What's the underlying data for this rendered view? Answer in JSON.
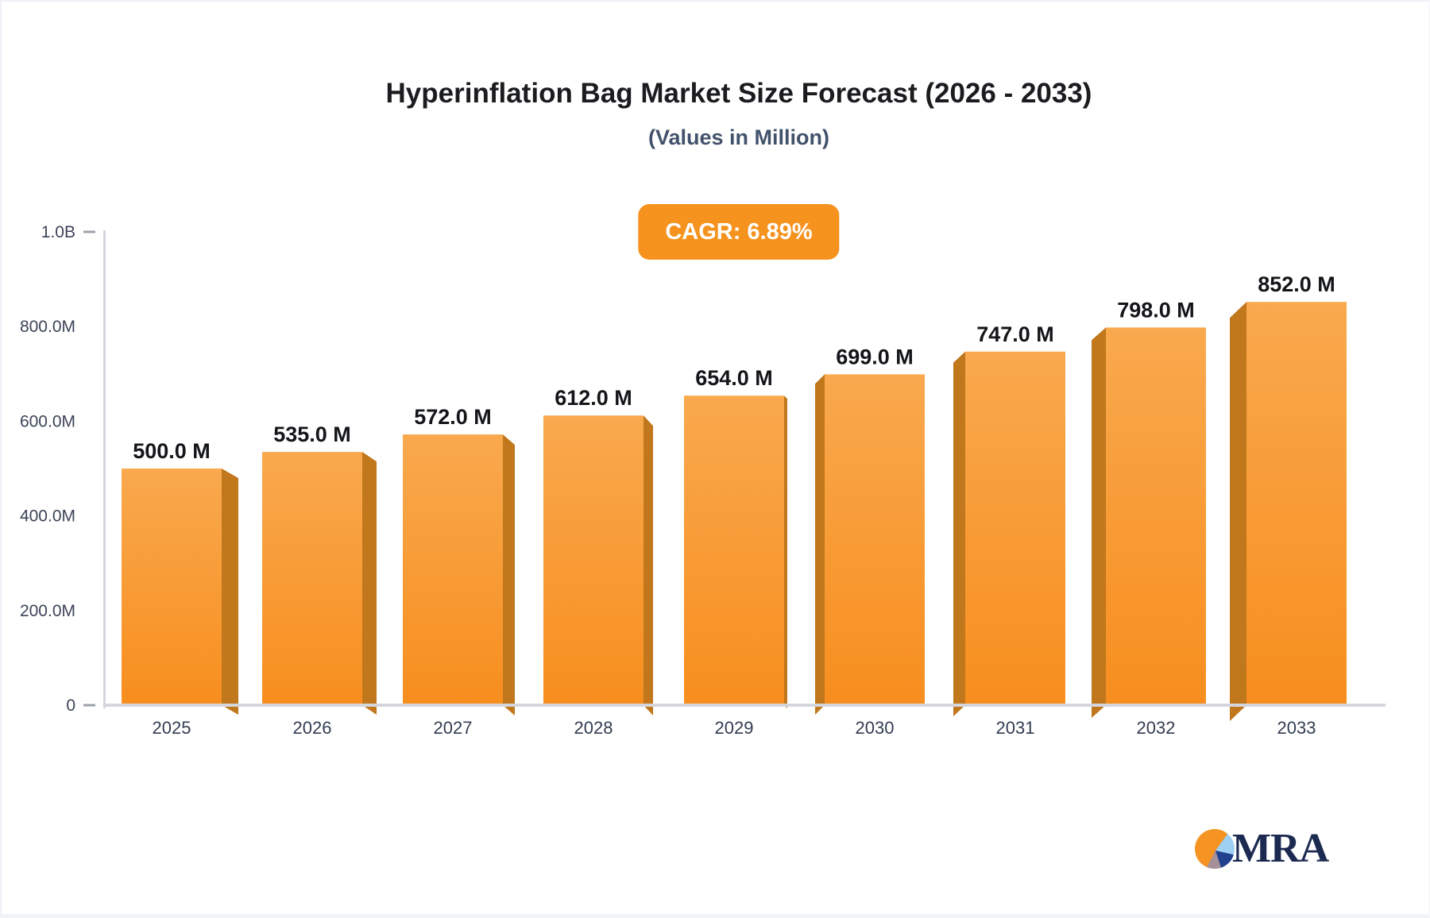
{
  "header": {
    "title": "Hyperinflation Bag Market Size Forecast (2026 - 2033)",
    "subtitle": "(Values in Million)"
  },
  "badge": {
    "label": "CAGR: 6.89%",
    "bg": "#f6921e",
    "text_color": "#ffffff"
  },
  "chart_data": {
    "type": "bar",
    "title": "Hyperinflation Bag Market Size Forecast (2026 - 2033)",
    "subtitle": "(Values in Million)",
    "cagr_label": "CAGR: 6.89%",
    "categories": [
      "2025",
      "2026",
      "2027",
      "2028",
      "2029",
      "2030",
      "2031",
      "2032",
      "2033"
    ],
    "values": [
      500,
      535,
      572,
      612,
      654,
      699,
      747,
      798,
      852
    ],
    "value_labels": [
      "500.0 M",
      "535.0 M",
      "572.0 M",
      "612.0 M",
      "654.0 M",
      "699.0 M",
      "747.0 M",
      "798.0 M",
      "852.0 M"
    ],
    "ylim": [
      0,
      1000
    ],
    "yticks": [
      {
        "v": 0,
        "label": "0"
      },
      {
        "v": 200,
        "label": "200.0M"
      },
      {
        "v": 400,
        "label": "400.0M"
      },
      {
        "v": 600,
        "label": "600.0M"
      },
      {
        "v": 800,
        "label": "800.0M"
      },
      {
        "v": 1000,
        "label": "1.0B"
      }
    ],
    "grid": false,
    "legend": false,
    "style_3d": true,
    "colors": {
      "bar_front_top": "#f9a94e",
      "bar_front_bottom": "#f78e1e",
      "bar_side": "#c1771b",
      "axis_line": "#d3d6dd",
      "tick_dash": "#9ba1ac",
      "value_label": "#131519",
      "tick_label": "#3c4458",
      "category_label": "#313d52"
    }
  },
  "logo": {
    "text": "MRA",
    "pie_colors": {
      "orange": "#f59422",
      "light_blue": "#9ed0f2",
      "dark_blue": "#21418e",
      "gray": "#a5909a"
    },
    "text_color": "#1c2a52"
  }
}
